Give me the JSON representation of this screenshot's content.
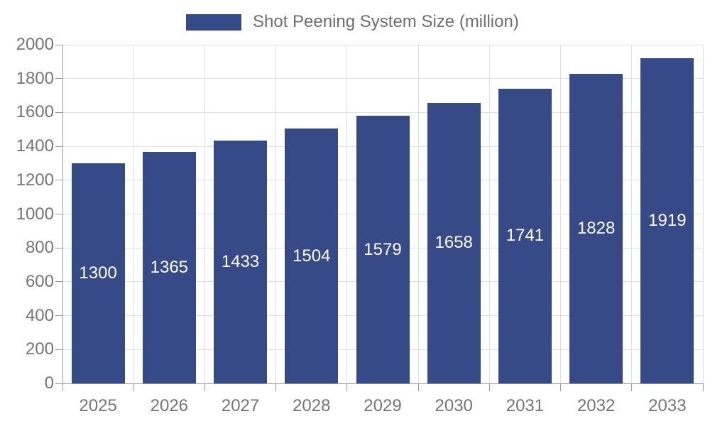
{
  "legend": {
    "label": "Shot Peening System Size (million)"
  },
  "chart_data": {
    "type": "bar",
    "title": "Shot Peening System Size (million)",
    "categories": [
      "2025",
      "2026",
      "2027",
      "2028",
      "2029",
      "2030",
      "2031",
      "2032",
      "2033"
    ],
    "series": [
      {
        "name": "Shot Peening System Size (million)",
        "values": [
          1300,
          1365,
          1433,
          1504,
          1579,
          1658,
          1741,
          1828,
          1919
        ]
      }
    ],
    "xlabel": "",
    "ylabel": "",
    "ylim": [
      0,
      2000
    ],
    "ytick_interval": 200,
    "ytick_labels": [
      "0",
      "200",
      "400",
      "600",
      "800",
      "1000",
      "1200",
      "1400",
      "1600",
      "1800",
      "2000"
    ],
    "grid": "both",
    "legend_position": "top",
    "bar_label_position": "inside-center"
  },
  "colors": {
    "bar": "#364a88",
    "bar_label": "#ffffff",
    "axis_text": "#757575",
    "legend_text": "#6e6e6e",
    "gridline": "#e0e0e0",
    "axis_line": "#9a9a9a",
    "background": "#ffffff"
  }
}
